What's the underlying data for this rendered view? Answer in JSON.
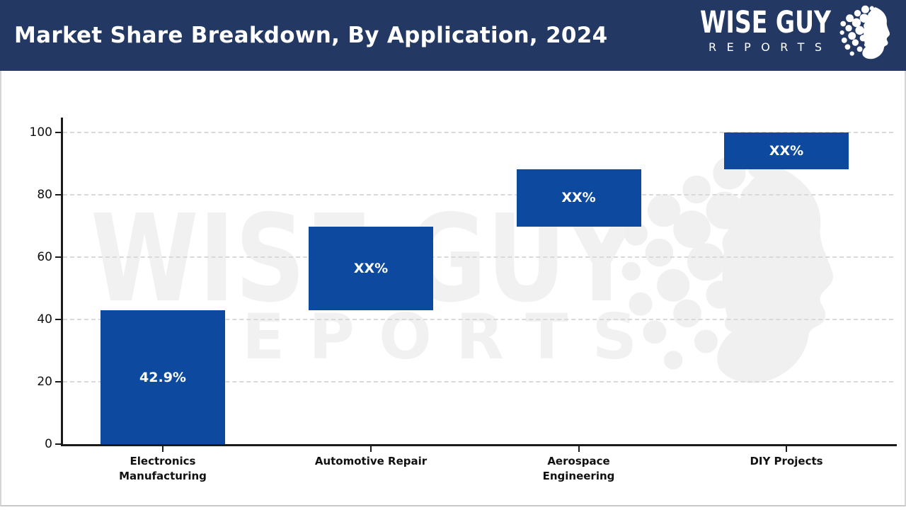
{
  "header": {
    "title": "Market Share Breakdown, By Application, 2024",
    "brand_line1": "WISE GUY",
    "brand_line2": "REPORTS"
  },
  "watermark": {
    "line1": "WISE GUY",
    "line2": "REPORTS"
  },
  "chart_data": {
    "type": "bar",
    "subtype": "waterfall",
    "title": "Market Share Breakdown, By Application, 2024",
    "categories": [
      {
        "name": "Electronics Manufacturing",
        "lines": [
          "Electronics",
          "Manufacturing"
        ]
      },
      {
        "name": "Automotive Repair",
        "lines": [
          "Automotive Repair"
        ]
      },
      {
        "name": "Aerospace Engineering",
        "lines": [
          "Aerospace",
          "Engineering"
        ]
      },
      {
        "name": "DIY Projects",
        "lines": [
          "DIY Projects"
        ]
      }
    ],
    "segments": [
      {
        "category": "Electronics Manufacturing",
        "start": 0,
        "end": 42.9,
        "value": 42.9,
        "label": "42.9%"
      },
      {
        "category": "Automotive Repair",
        "start": 42.9,
        "end": 69.8,
        "value": 26.9,
        "label": "XX%"
      },
      {
        "category": "Aerospace Engineering",
        "start": 69.8,
        "end": 88.2,
        "value": 18.4,
        "label": "XX%"
      },
      {
        "category": "DIY Projects",
        "start": 88.2,
        "end": 100,
        "value": 11.8,
        "label": "XX%"
      }
    ],
    "yticks": [
      0,
      20,
      40,
      60,
      80,
      100
    ],
    "ylim": [
      0,
      105
    ],
    "xlabel": "",
    "ylabel": "",
    "legend": "none",
    "grid": "horizontal-dashed",
    "bar_color": "#0d4a9f",
    "label_color": "#ffffff"
  },
  "colors": {
    "header_bg": "#233862",
    "axis": "#1a1a1a",
    "gridline": "#d9d9d9",
    "watermark": "#f1f1f1",
    "background": "#ffffff"
  }
}
